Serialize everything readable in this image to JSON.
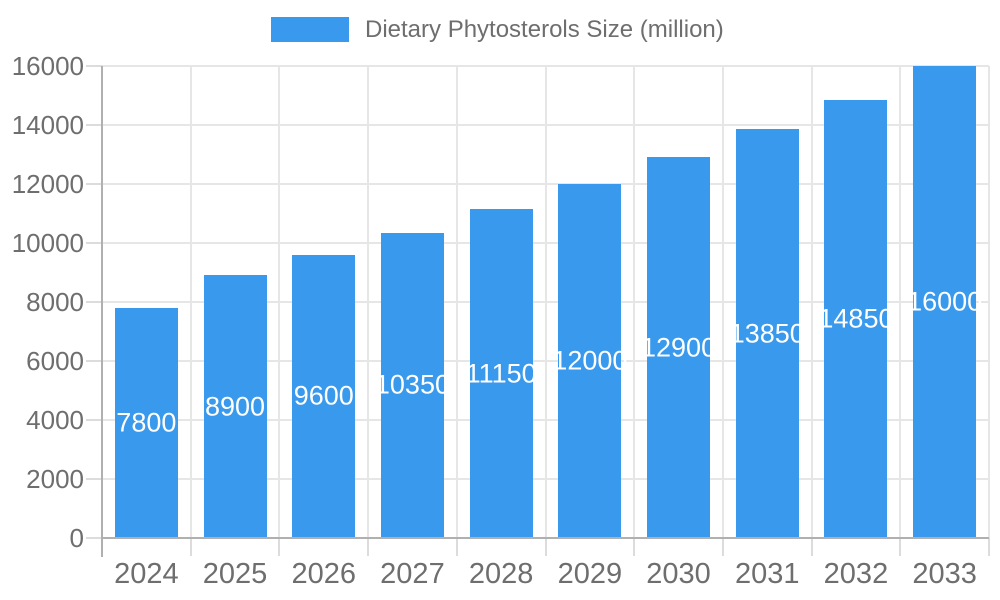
{
  "chart_data": {
    "type": "bar",
    "title": "Dietary Phytosterols Size (million)",
    "categories": [
      "2024",
      "2025",
      "2026",
      "2027",
      "2028",
      "2029",
      "2030",
      "2031",
      "2032",
      "2033"
    ],
    "values": [
      7800,
      8900,
      9600,
      10350,
      11150,
      12000,
      12900,
      13850,
      14850,
      16000
    ],
    "series": [
      {
        "name": "Dietary Phytosterols Size (million)",
        "values": [
          7800,
          8900,
          9600,
          10350,
          11150,
          12000,
          12900,
          13850,
          14850,
          16000
        ]
      }
    ],
    "xlabel": "",
    "ylabel": "",
    "ylim": [
      0,
      16000
    ],
    "yticks": [
      0,
      2000,
      4000,
      6000,
      8000,
      10000,
      12000,
      14000,
      16000
    ],
    "grid": true,
    "legend_position": "top-center",
    "data_labels": "inside-center",
    "colors": {
      "bar": "#3999EC",
      "bar_value_label": "#FFFFFF",
      "axis_text": "#6E6E6E",
      "grid_line": "#E6E6E6",
      "axis_line": "#B0B0B0",
      "minor_tick": "#DCDCDC",
      "background": "#FFFFFF"
    }
  }
}
